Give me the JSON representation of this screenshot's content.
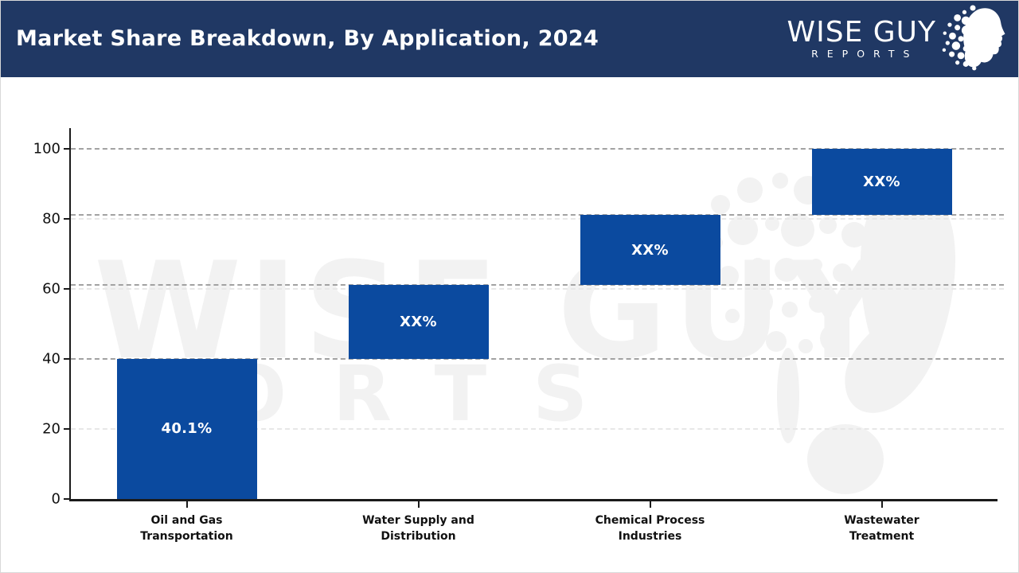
{
  "header": {
    "title": "Market Share Breakdown, By Application, 2024",
    "logo": {
      "line1": "WISE GUY",
      "line2": "REPORTS"
    }
  },
  "watermark": {
    "line1": "WISE GUY",
    "line2": "PORTS"
  },
  "colors": {
    "header_bg": "#203864",
    "bar": "#0b4a9f",
    "gridline": "#e7e7e7",
    "step_line": "#a2a2a2",
    "axis": "#1a1a1a",
    "watermark": "#f2f2f2",
    "title_text": "#ffffff",
    "bar_label_text": "#ffffff"
  },
  "chart_data": {
    "type": "bar",
    "subtype": "waterfall",
    "title": "Market Share Breakdown, By Application, 2024",
    "xlabel": "",
    "ylabel": "",
    "ylim": [
      0,
      100
    ],
    "yticks": [
      0,
      20,
      40,
      60,
      80,
      100
    ],
    "grid": true,
    "legend": false,
    "categories": [
      "Oil and Gas\nTransportation",
      "Water Supply and\nDistribution",
      "Chemical Process\nIndustries",
      "Wastewater\nTreatment"
    ],
    "segments": [
      {
        "start": 0,
        "end": 40.1,
        "value": 40.1,
        "label": "40.1%"
      },
      {
        "start": 40.1,
        "end": 61.1,
        "value": 21.0,
        "label": "XX%"
      },
      {
        "start": 61.1,
        "end": 81.1,
        "value": 20.0,
        "label": "XX%"
      },
      {
        "start": 81.1,
        "end": 100,
        "value": 18.9,
        "label": "XX%"
      }
    ]
  }
}
